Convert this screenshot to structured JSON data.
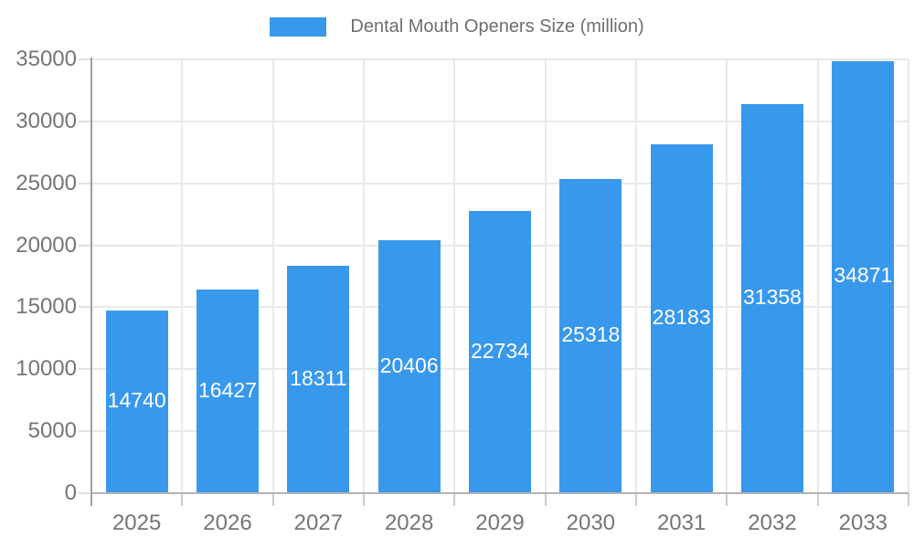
{
  "chart_data": {
    "type": "bar",
    "title": "",
    "legend_label": "Dental Mouth Openers Size (million)",
    "legend_position": "top",
    "categories": [
      "2025",
      "2026",
      "2027",
      "2028",
      "2029",
      "2030",
      "2031",
      "2032",
      "2033"
    ],
    "series": [
      {
        "name": "Dental Mouth Openers Size (million)",
        "values": [
          14740,
          16427,
          18311,
          20406,
          22734,
          25318,
          28183,
          31358,
          34871
        ]
      }
    ],
    "yticks": [
      0,
      5000,
      10000,
      15000,
      20000,
      25000,
      30000,
      35000
    ],
    "ylim": [
      0,
      35000
    ],
    "grid": true,
    "data_labels": true,
    "colors": {
      "bar": "#3898ec",
      "data_label": "#ffffff",
      "tick_label": "#757575",
      "legend_text": "#6e6e6e",
      "grid_line": "#e9e9e9",
      "y_tick_mark": "#e0e0e0",
      "x_tick_mark": "#cccccc",
      "y_axis_line": "#9e9e9e",
      "x_axis_line": "#b3b3b3",
      "background": "#ffffff"
    }
  }
}
